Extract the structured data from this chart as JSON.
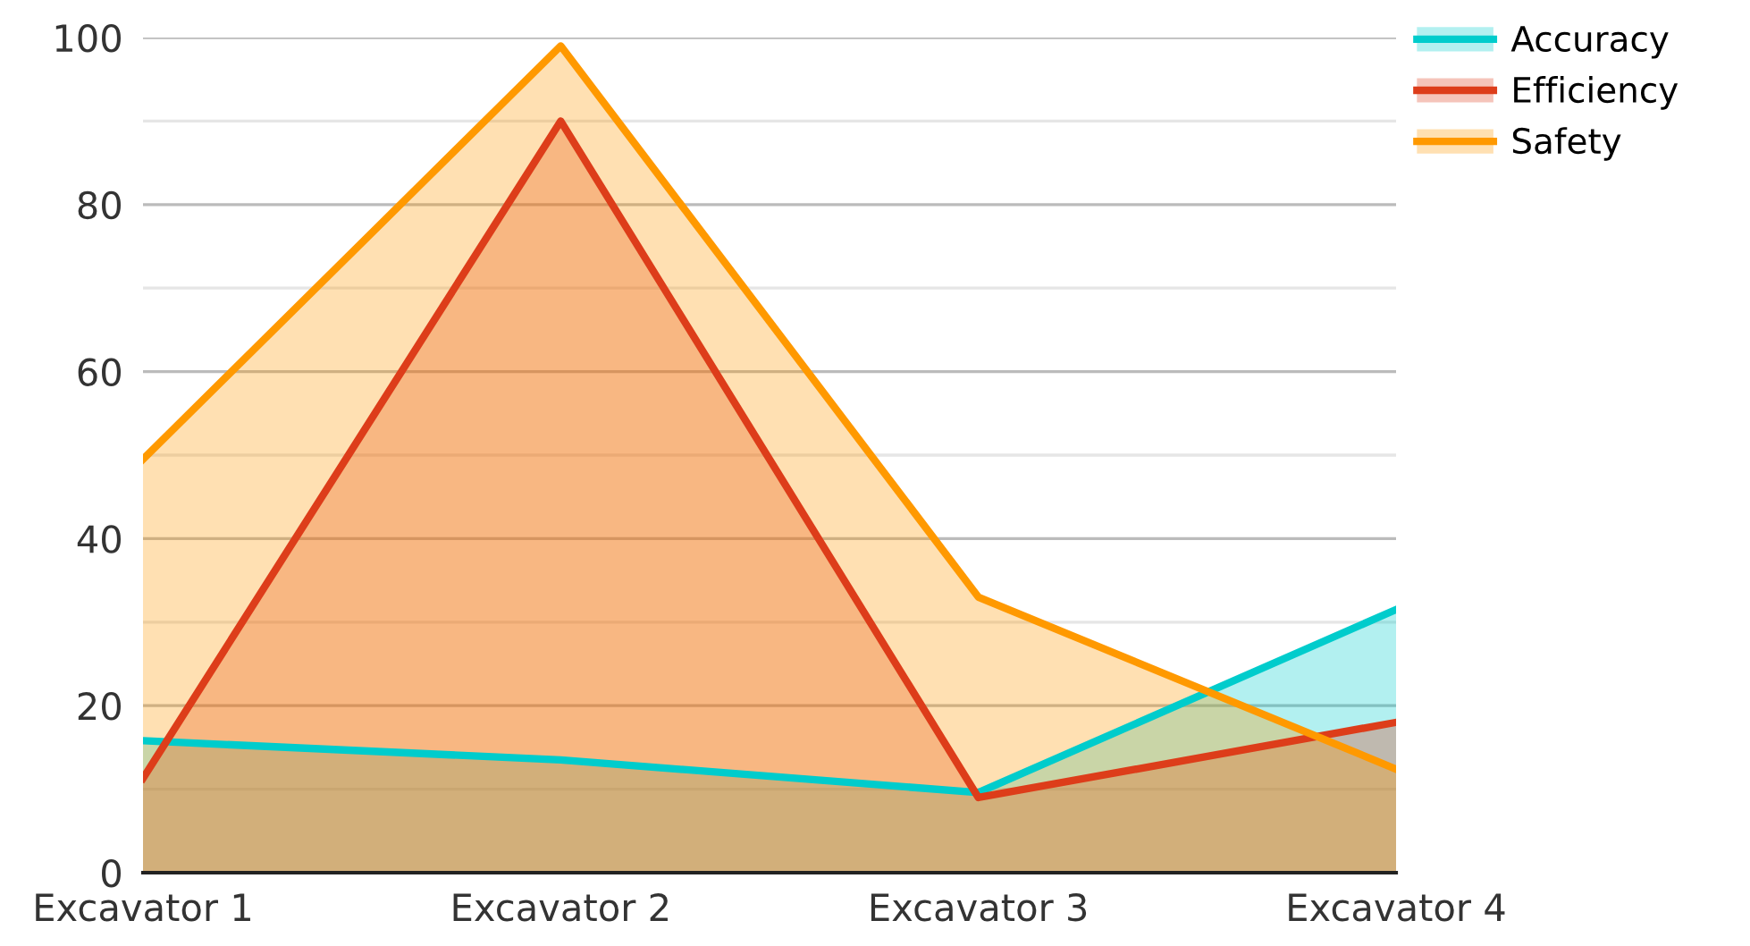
{
  "chart_data": {
    "type": "area",
    "categories": [
      "Excavator 1",
      "Excavator 2",
      "Excavator 3",
      "Excavator 4"
    ],
    "series": [
      {
        "name": "Accuracy",
        "color": "#00cccc",
        "values": [
          15.8,
          13.5,
          9.6,
          31.5
        ]
      },
      {
        "name": "Efficiency",
        "color": "#dd3d1a",
        "values": [
          11.3,
          90,
          9,
          18
        ]
      },
      {
        "name": "Safety",
        "color": "#ff9900",
        "values": [
          49.5,
          99,
          33,
          12.4
        ]
      }
    ],
    "ylim": [
      0,
      100
    ],
    "yticks": [
      0,
      {
        "value": 10,
        "label": null
      },
      20,
      {
        "value": 30,
        "label": null
      },
      40,
      {
        "value": 50,
        "label": null
      },
      60,
      {
        "value": 70,
        "label": null
      },
      80,
      {
        "value": 90,
        "label": null
      },
      100
    ],
    "grid": "y",
    "legend": "top right"
  }
}
